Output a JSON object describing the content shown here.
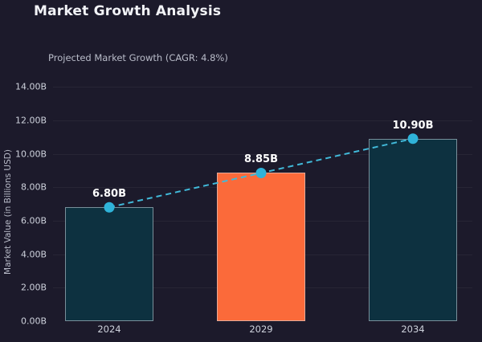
{
  "header": {
    "title": "Market Growth Analysis",
    "subtitle": "Projected Market Growth (CAGR: 4.8%)"
  },
  "chart_data": {
    "type": "bar",
    "title": "Market Growth Analysis",
    "subtitle": "Projected Market Growth (CAGR: 4.8%)",
    "categories": [
      "2024",
      "2029",
      "2034"
    ],
    "values": [
      6.8,
      8.85,
      10.9
    ],
    "value_labels": [
      "6.80B",
      "8.85B",
      "10.90B"
    ],
    "bar_colors": [
      "#0d3140",
      "#fb6a3a",
      "#0d3140"
    ],
    "xlabel": "",
    "ylabel": "Market Value (in Billions USD)",
    "ylim": [
      0,
      14
    ],
    "y_ticks": [
      0,
      2,
      4,
      6,
      8,
      10,
      12,
      14
    ],
    "y_tick_labels": [
      "0.00B",
      "2.00B",
      "4.00B",
      "6.00B",
      "8.00B",
      "10.00B",
      "12.00B",
      "14.00B"
    ],
    "grid": "faint horizontal gridlines",
    "legend": "none",
    "trend_overlay": {
      "style": "dashed line through bar tops with circular markers",
      "line_color": "#41b9d9",
      "marker_color": "#2fb3d9"
    }
  },
  "colors": {
    "background": "#1c1a2b",
    "title_text": "#f2f3f7",
    "subtitle_text": "#b9bcc9",
    "tick_text": "#ced2dc",
    "bar_teal": "#0d3140",
    "bar_orange": "#fb6a3a",
    "bar_border": "#d2dce4",
    "trend_line": "#41b9d9",
    "trend_marker": "#2fb3d9"
  }
}
